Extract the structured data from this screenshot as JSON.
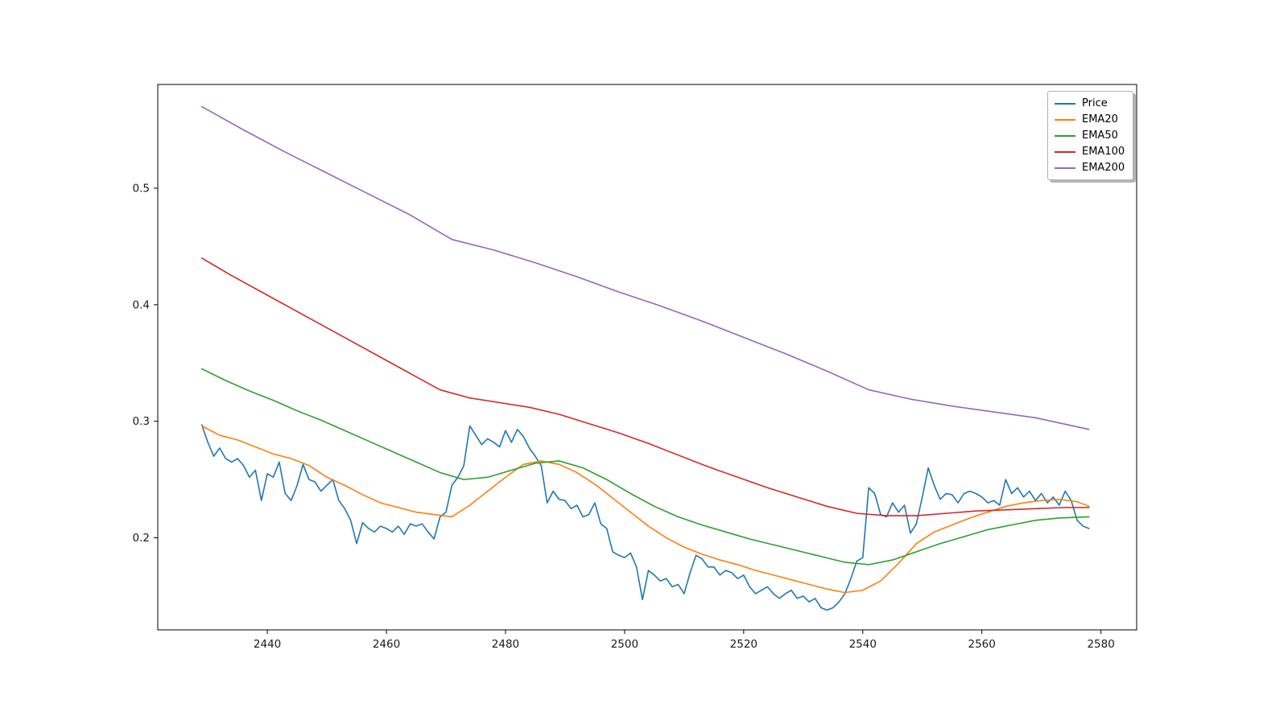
{
  "figure": {
    "background": "#ffffff",
    "axes_edge_color": "#000000",
    "tick_color": "#000000",
    "tick_label_color": "#1a1a1a"
  },
  "chart_data": {
    "type": "line",
    "title": "",
    "xlabel": "",
    "ylabel": "",
    "grid": false,
    "xlim": [
      2421.6,
      2586.0
    ],
    "ylim": [
      0.121,
      0.589
    ],
    "x_ticks": [
      2440,
      2460,
      2480,
      2500,
      2520,
      2540,
      2560,
      2580
    ],
    "x_tick_labels": [
      "2440",
      "2460",
      "2480",
      "2500",
      "2520",
      "2540",
      "2560",
      "2580"
    ],
    "y_ticks": [
      0.2,
      0.3,
      0.4,
      0.5
    ],
    "y_tick_labels": [
      "0.2",
      "0.3",
      "0.4",
      "0.5"
    ],
    "legend": {
      "position": "upper right",
      "entries": [
        "Price",
        "EMA20",
        "EMA50",
        "EMA100",
        "EMA200"
      ]
    },
    "series": [
      {
        "name": "Price",
        "color": "#1f77b4",
        "x_start": 2429,
        "x_step": 1,
        "values": [
          0.297,
          0.282,
          0.27,
          0.277,
          0.268,
          0.265,
          0.268,
          0.262,
          0.252,
          0.258,
          0.232,
          0.255,
          0.252,
          0.265,
          0.238,
          0.232,
          0.245,
          0.263,
          0.25,
          0.248,
          0.24,
          0.245,
          0.25,
          0.232,
          0.225,
          0.215,
          0.195,
          0.213,
          0.208,
          0.205,
          0.21,
          0.208,
          0.205,
          0.21,
          0.203,
          0.212,
          0.21,
          0.212,
          0.205,
          0.199,
          0.218,
          0.222,
          0.245,
          0.252,
          0.262,
          0.296,
          0.288,
          0.28,
          0.285,
          0.282,
          0.278,
          0.292,
          0.282,
          0.293,
          0.287,
          0.277,
          0.27,
          0.262,
          0.23,
          0.24,
          0.233,
          0.232,
          0.225,
          0.228,
          0.218,
          0.22,
          0.23,
          0.212,
          0.208,
          0.188,
          0.185,
          0.183,
          0.187,
          0.175,
          0.147,
          0.172,
          0.168,
          0.163,
          0.165,
          0.158,
          0.16,
          0.152,
          0.17,
          0.185,
          0.182,
          0.175,
          0.175,
          0.168,
          0.172,
          0.17,
          0.165,
          0.168,
          0.158,
          0.152,
          0.155,
          0.158,
          0.152,
          0.148,
          0.152,
          0.155,
          0.148,
          0.15,
          0.145,
          0.148,
          0.14,
          0.138,
          0.14,
          0.145,
          0.152,
          0.165,
          0.18,
          0.183,
          0.243,
          0.238,
          0.22,
          0.218,
          0.23,
          0.222,
          0.228,
          0.204,
          0.212,
          0.235,
          0.26,
          0.245,
          0.233,
          0.238,
          0.237,
          0.23,
          0.238,
          0.24,
          0.238,
          0.235,
          0.23,
          0.232,
          0.228,
          0.25,
          0.238,
          0.243,
          0.235,
          0.24,
          0.232,
          0.238,
          0.23,
          0.235,
          0.228,
          0.24,
          0.232,
          0.215,
          0.21,
          0.208
        ]
      },
      {
        "name": "EMA20",
        "color": "#ff7f0e",
        "x": [
          2429,
          2432,
          2435,
          2438,
          2441,
          2444,
          2447,
          2450,
          2453,
          2456,
          2459,
          2462,
          2465,
          2468,
          2471,
          2474,
          2477,
          2480,
          2483,
          2486,
          2489,
          2492,
          2495,
          2498,
          2501,
          2504,
          2507,
          2510,
          2513,
          2516,
          2519,
          2522,
          2525,
          2528,
          2531,
          2534,
          2537,
          2540,
          2543,
          2546,
          2549,
          2552,
          2555,
          2558,
          2561,
          2564,
          2567,
          2570,
          2573,
          2576,
          2578
        ],
        "values": [
          0.296,
          0.288,
          0.284,
          0.278,
          0.272,
          0.268,
          0.262,
          0.252,
          0.245,
          0.237,
          0.23,
          0.226,
          0.222,
          0.22,
          0.218,
          0.228,
          0.24,
          0.252,
          0.263,
          0.266,
          0.263,
          0.256,
          0.246,
          0.234,
          0.222,
          0.21,
          0.2,
          0.192,
          0.186,
          0.181,
          0.177,
          0.172,
          0.168,
          0.164,
          0.16,
          0.156,
          0.153,
          0.155,
          0.163,
          0.178,
          0.195,
          0.205,
          0.211,
          0.217,
          0.222,
          0.227,
          0.23,
          0.232,
          0.233,
          0.231,
          0.227
        ]
      },
      {
        "name": "EMA50",
        "color": "#2ca02c",
        "x": [
          2429,
          2433,
          2437,
          2441,
          2445,
          2449,
          2453,
          2457,
          2461,
          2465,
          2469,
          2473,
          2477,
          2481,
          2485,
          2489,
          2493,
          2497,
          2501,
          2505,
          2509,
          2513,
          2517,
          2521,
          2525,
          2529,
          2533,
          2537,
          2541,
          2545,
          2549,
          2553,
          2557,
          2561,
          2565,
          2569,
          2573,
          2578
        ],
        "values": [
          0.345,
          0.335,
          0.326,
          0.318,
          0.309,
          0.301,
          0.292,
          0.283,
          0.274,
          0.265,
          0.256,
          0.25,
          0.252,
          0.258,
          0.264,
          0.266,
          0.26,
          0.25,
          0.238,
          0.227,
          0.218,
          0.211,
          0.205,
          0.199,
          0.194,
          0.189,
          0.184,
          0.179,
          0.177,
          0.181,
          0.188,
          0.195,
          0.201,
          0.207,
          0.211,
          0.215,
          0.217,
          0.218
        ]
      },
      {
        "name": "EMA100",
        "color": "#d62728",
        "x": [
          2429,
          2434,
          2439,
          2444,
          2449,
          2454,
          2459,
          2464,
          2469,
          2474,
          2479,
          2484,
          2489,
          2494,
          2499,
          2504,
          2509,
          2514,
          2519,
          2524,
          2529,
          2534,
          2539,
          2544,
          2549,
          2554,
          2559,
          2564,
          2569,
          2574,
          2578
        ],
        "values": [
          0.44,
          0.425,
          0.411,
          0.397,
          0.383,
          0.369,
          0.355,
          0.341,
          0.327,
          0.32,
          0.316,
          0.312,
          0.306,
          0.298,
          0.29,
          0.281,
          0.271,
          0.261,
          0.252,
          0.243,
          0.235,
          0.227,
          0.221,
          0.219,
          0.219,
          0.221,
          0.223,
          0.224,
          0.225,
          0.226,
          0.226
        ]
      },
      {
        "name": "EMA200",
        "color": "#9467bd",
        "x": [
          2429,
          2436,
          2443,
          2450,
          2457,
          2464,
          2471,
          2478,
          2485,
          2492,
          2499,
          2506,
          2513,
          2520,
          2527,
          2534,
          2541,
          2548,
          2555,
          2562,
          2569,
          2578
        ],
        "values": [
          0.57,
          0.55,
          0.531,
          0.513,
          0.495,
          0.477,
          0.456,
          0.447,
          0.436,
          0.424,
          0.411,
          0.399,
          0.386,
          0.372,
          0.358,
          0.343,
          0.327,
          0.319,
          0.313,
          0.308,
          0.303,
          0.293
        ]
      }
    ]
  }
}
